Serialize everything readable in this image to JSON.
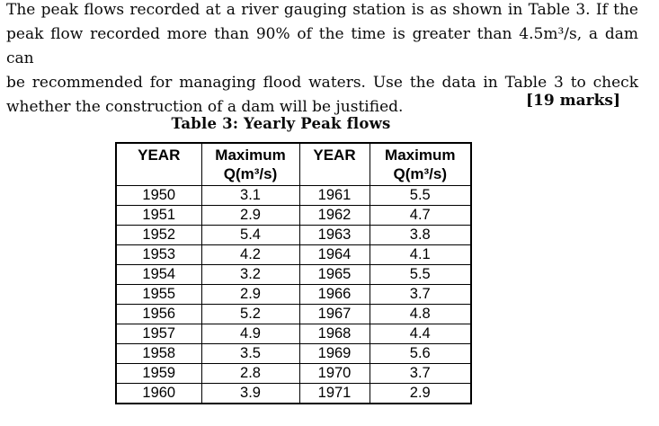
{
  "document": {
    "paragraph_lines": [
      "The peak flows recorded at a river gauging station is as shown in Table 3. If the",
      "peak flow recorded more than 90% of the time is greater than 4.5m³/s, a dam can",
      "be recommended for managing flood waters. Use the data in Table 3 to check",
      "whether the construction of a dam will be justified."
    ],
    "marks_label": "[19 marks]",
    "table_title": "Table 3: Yearly Peak flows"
  },
  "table": {
    "headers": [
      {
        "lines": [
          "YEAR"
        ]
      },
      {
        "lines": [
          "Maximum",
          "Q(m³/s)"
        ]
      },
      {
        "lines": [
          "YEAR"
        ]
      },
      {
        "lines": [
          "Maximum",
          "Q(m³/s)"
        ]
      }
    ],
    "rows": [
      [
        "1950",
        "3.1",
        "1961",
        "5.5"
      ],
      [
        "1951",
        "2.9",
        "1962",
        "4.7"
      ],
      [
        "1952",
        "5.4",
        "1963",
        "3.8"
      ],
      [
        "1953",
        "4.2",
        "1964",
        "4.1"
      ],
      [
        "1954",
        "3.2",
        "1965",
        "5.5"
      ],
      [
        "1955",
        "2.9",
        "1966",
        "3.7"
      ],
      [
        "1956",
        "5.2",
        "1967",
        "4.8"
      ],
      [
        "1957",
        "4.9",
        "1968",
        "4.4"
      ],
      [
        "1958",
        "3.5",
        "1969",
        "5.6"
      ],
      [
        "1959",
        "2.8",
        "1970",
        "3.7"
      ],
      [
        "1960",
        "3.9",
        "1971",
        "2.9"
      ]
    ]
  },
  "colors": {
    "background": "#ffffff",
    "text": "#0a0a0a",
    "table_border": "#000000"
  }
}
